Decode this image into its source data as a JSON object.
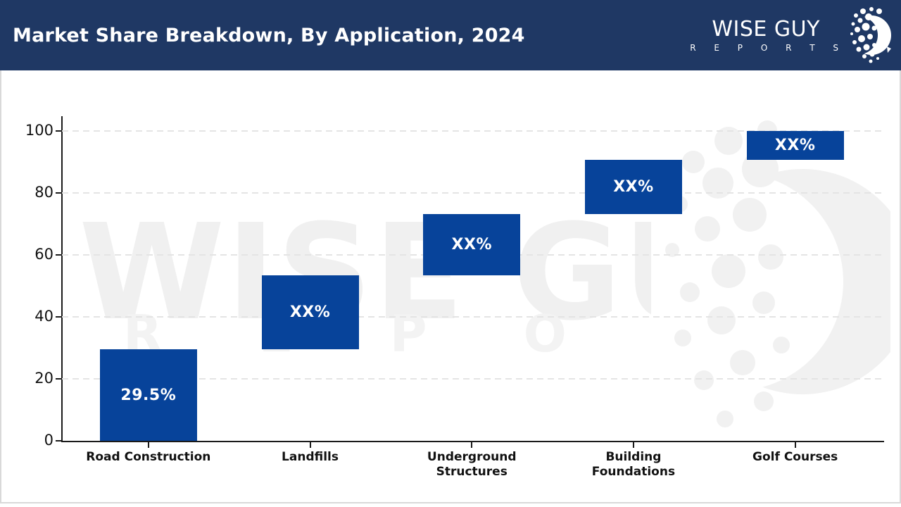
{
  "header": {
    "title": "Market Share Breakdown, By Application, 2024",
    "logo": {
      "line1": "WISE GUY",
      "line2": "R E P O R T S"
    }
  },
  "watermark": {
    "line1": "WISE GUY",
    "line2": "R E P O R T S"
  },
  "colors": {
    "header_bg": "#1f3864",
    "bar": "#07439a",
    "bar_label": "#ffffff",
    "axis": "#1a1a1a",
    "gridline": "#e4e4e4",
    "watermark": "#f0f0f0"
  },
  "chart_data": {
    "type": "bar",
    "subtype": "waterfall",
    "title": "Market Share Breakdown, By Application, 2024",
    "categories": [
      "Road Construction",
      "Landfills",
      "Underground\nStructures",
      "Building\nFoundations",
      "Golf Courses"
    ],
    "segments": [
      {
        "category": "Road Construction",
        "start": 0,
        "end": 29.5,
        "label": "29.5%"
      },
      {
        "category": "Landfills",
        "start": 29.5,
        "end": 53.3,
        "label": "XX%"
      },
      {
        "category": "Underground Structures",
        "start": 53.3,
        "end": 73.1,
        "label": "XX%"
      },
      {
        "category": "Building Foundations",
        "start": 73.1,
        "end": 90.7,
        "label": "XX%"
      },
      {
        "category": "Golf Courses",
        "start": 90.7,
        "end": 100,
        "label": "XX%"
      }
    ],
    "yticks": [
      0,
      20,
      40,
      60,
      80,
      100
    ],
    "ylim": [
      0,
      107
    ],
    "xlabel": "",
    "ylabel": "",
    "grid": "dashed-horizontal",
    "legend": "none",
    "bar_color": "#07439a"
  }
}
